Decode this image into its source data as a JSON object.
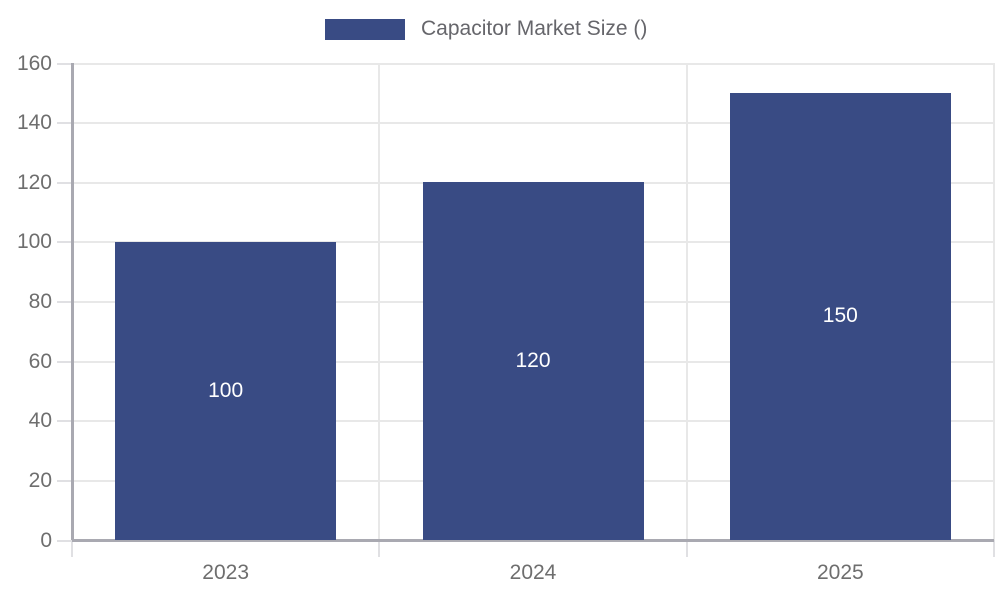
{
  "chart_data": {
    "type": "bar",
    "title": "",
    "legend": {
      "label": "Capacitor Market Size ()",
      "position": "top-center"
    },
    "categories": [
      "2023",
      "2024",
      "2025"
    ],
    "series": [
      {
        "name": "Capacitor Market Size ()",
        "values": [
          100,
          120,
          150
        ]
      }
    ],
    "data_labels": [
      "100",
      "120",
      "150"
    ],
    "xlabel": "",
    "ylabel": "",
    "ylim": [
      0,
      160
    ],
    "yticks": [
      0,
      20,
      40,
      60,
      80,
      100,
      120,
      140,
      160
    ],
    "grid": true
  },
  "colors": {
    "background": "#ffffff",
    "bar": "#394b84",
    "grid": "#e8e8e8",
    "tick": "#e0e0e3",
    "axis_line": "#a9a9b1",
    "tick_label": "#6e6e6e",
    "legend_text": "#66666b",
    "value_label": "#ffffff"
  }
}
